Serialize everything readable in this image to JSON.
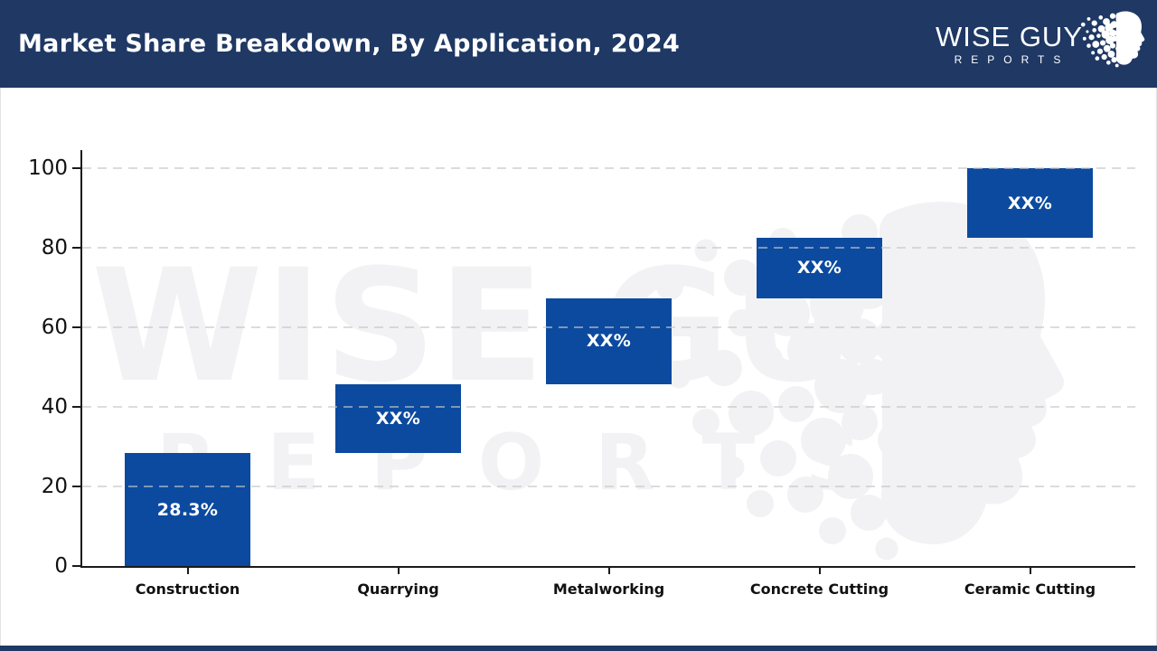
{
  "header": {
    "title": "Market Share Breakdown, By Application, 2024",
    "logo": {
      "line1": "WISE GUY",
      "line2": "REPORTS"
    }
  },
  "watermark": {
    "line1": "WISE GUY",
    "line2": "REPORTS"
  },
  "colors": {
    "header_bg": "#1F3864",
    "footer_bg": "#1F3864",
    "bar": "#0B4A9F",
    "bar_label": "#FFFFFF",
    "axis": "#1A1A1A",
    "grid": "#D9D9D9",
    "watermark": "#F2F2F4"
  },
  "chart_data": {
    "type": "bar",
    "subtype": "waterfall",
    "title": "Market Share Breakdown, By Application, 2024",
    "categories": [
      "Construction",
      "Quarrying",
      "Metalworking",
      "Concrete Cutting",
      "Ceramic Cutting"
    ],
    "segments": [
      {
        "category": "Construction",
        "start": 0,
        "end": 28.3,
        "label": "28.3%"
      },
      {
        "category": "Quarrying",
        "start": 28.3,
        "end": 45.7,
        "label": "XX%"
      },
      {
        "category": "Metalworking",
        "start": 45.7,
        "end": 67.3,
        "label": "XX%"
      },
      {
        "category": "Concrete Cutting",
        "start": 67.3,
        "end": 82.5,
        "label": "XX%"
      },
      {
        "category": "Ceramic Cutting",
        "start": 82.5,
        "end": 100,
        "label": "XX%"
      }
    ],
    "xlabel": "",
    "ylabel": "",
    "ylim": [
      0,
      100
    ],
    "yticks": [
      0,
      20,
      40,
      60,
      80,
      100
    ],
    "grid": "horizontal-dashed",
    "legend": "none",
    "bar_color": "#0B4A9F",
    "bar_width_fraction": 0.6
  }
}
